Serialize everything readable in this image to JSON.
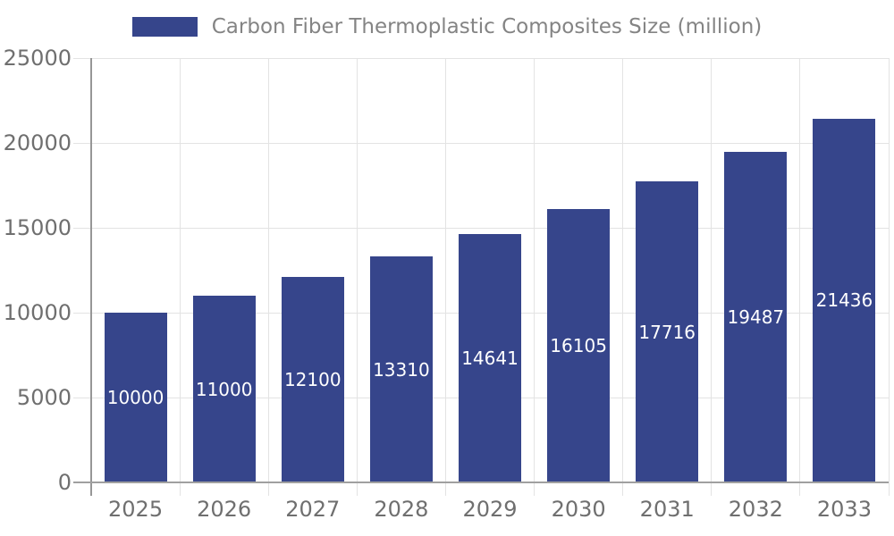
{
  "legend": {
    "label": "Carbon Fiber Thermoplastic Composites Size (million)",
    "swatch_color": "#36458B"
  },
  "chart_data": {
    "type": "bar",
    "title": "Carbon Fiber Thermoplastic Composites Size (million)",
    "categories": [
      "2025",
      "2026",
      "2027",
      "2028",
      "2029",
      "2030",
      "2031",
      "2032",
      "2033"
    ],
    "values": [
      10000,
      11000,
      12100,
      13310,
      14641,
      16105,
      17716,
      19487,
      21436
    ],
    "xlabel": "",
    "ylabel": "",
    "ylim": [
      0,
      25000
    ],
    "yticks": [
      0,
      5000,
      10000,
      15000,
      20000,
      25000
    ],
    "grid": true,
    "legend_position": "top",
    "bar_color": "#36458B",
    "value_label_color": "#FFFFFF"
  },
  "colors": {
    "background": "#FFFFFF",
    "bar": "#36458B",
    "grid": "#E3E3E3",
    "axis": "#9B9B9B",
    "tick_label": "#6F6F6F",
    "legend_text": "#848484",
    "value_label": "#FFFFFF"
  }
}
